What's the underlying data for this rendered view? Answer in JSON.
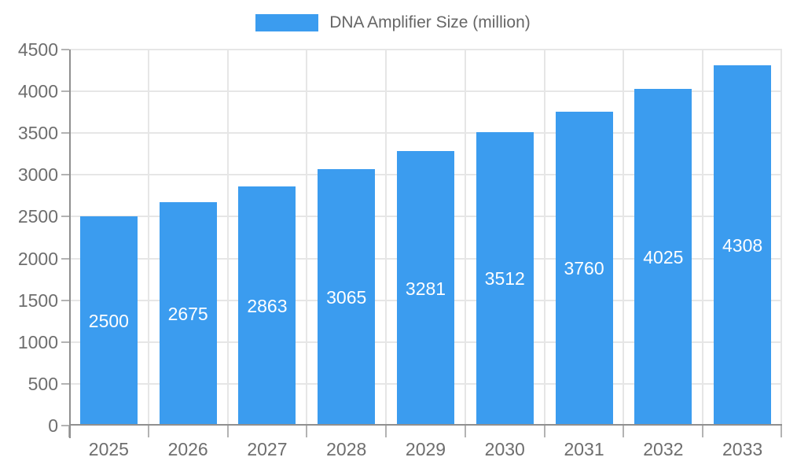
{
  "legend": {
    "label": "DNA Amplifier Size (million)"
  },
  "chart_data": {
    "type": "bar",
    "title": "DNA Amplifier Size (million)",
    "series_name": "DNA Amplifier Size (million)",
    "categories": [
      "2025",
      "2026",
      "2027",
      "2028",
      "2029",
      "2030",
      "2031",
      "2032",
      "2033"
    ],
    "values": [
      2500,
      2675,
      2863,
      3065,
      3281,
      3512,
      3760,
      4025,
      4308
    ],
    "ylim": [
      0,
      4500
    ],
    "ytick_step": 500,
    "y_ticks": [
      "0",
      "500",
      "1000",
      "1500",
      "2000",
      "2500",
      "3000",
      "3500",
      "4000",
      "4500"
    ],
    "grid": true,
    "legend_position": "top-center",
    "value_label_position": "inside-center",
    "colors": {
      "bar": "#3B9CEF",
      "grid": "#E6E6E6",
      "axis": "#8F8F8F",
      "tick": "#B3B3B3",
      "axis_label": "#6E6E6E",
      "legend_text": "#666666",
      "value_label": "#FFFFFF",
      "background": "#FFFFFF"
    }
  }
}
